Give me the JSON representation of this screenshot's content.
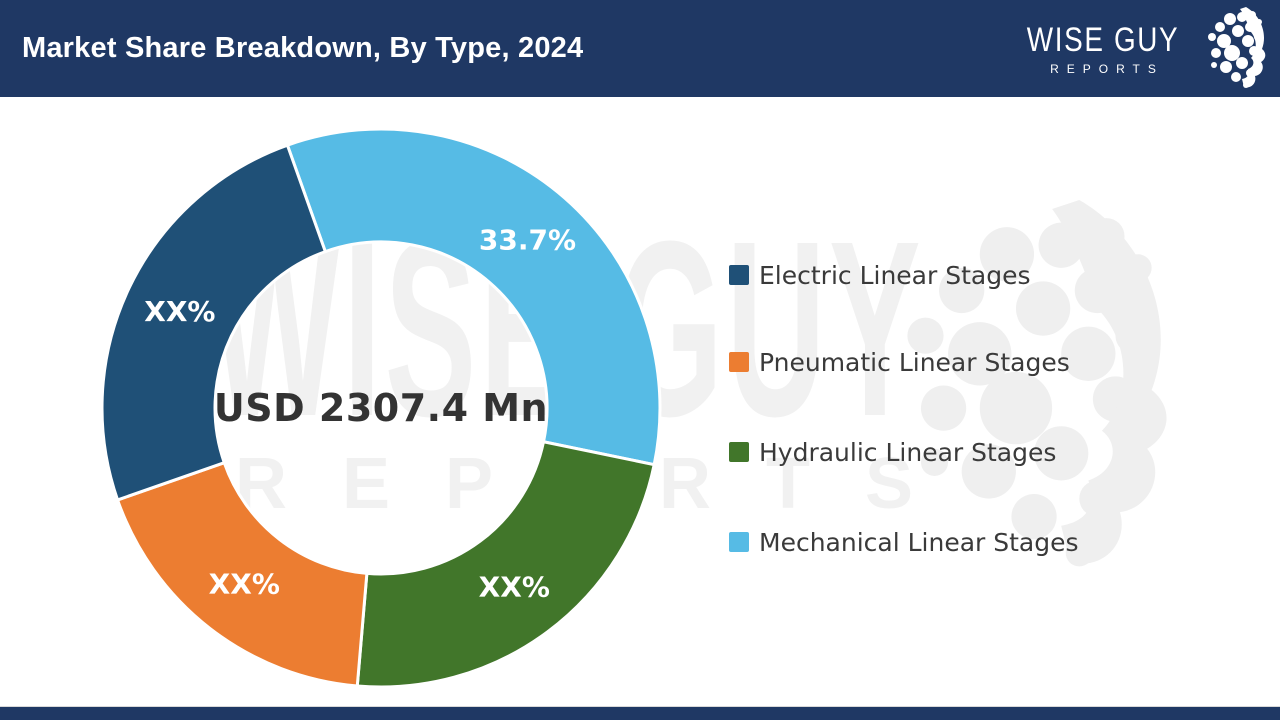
{
  "header": {
    "title": "Market Share Breakdown, By Type, 2024",
    "logo": {
      "line1": "WISE GUY",
      "line2": "REPORTS"
    }
  },
  "watermark": {
    "line1": "WISE GUY",
    "line2": "REPORTS"
  },
  "chart_data": {
    "type": "pie",
    "donut": true,
    "title": "Market Share Breakdown, By Type, 2024",
    "center_label": "USD 2307.4 Mn",
    "start_angle_deg": -19.6,
    "draw_order_clockwise": [
      3,
      2,
      1,
      0
    ],
    "slices": [
      {
        "name": "Electric Linear Stages",
        "label": "XX%",
        "value": 24.9,
        "color": "#1F5077"
      },
      {
        "name": "Pneumatic Linear Stages",
        "label": "XX%",
        "value": 18.3,
        "color": "#EC7D31"
      },
      {
        "name": "Hydraulic Linear Stages",
        "label": "XX%",
        "value": 23.1,
        "color": "#41762A"
      },
      {
        "name": "Mechanical Linear Stages",
        "label": "33.7%",
        "value": 33.7,
        "color": "#56BBE5"
      }
    ],
    "legend_position": "right"
  },
  "colors": {
    "header_bg": "#1F3864",
    "footer_bg": "#1F3864",
    "legend_text": "#3A3A3A",
    "center_text": "#333333",
    "watermark": "#F1F1F1"
  }
}
